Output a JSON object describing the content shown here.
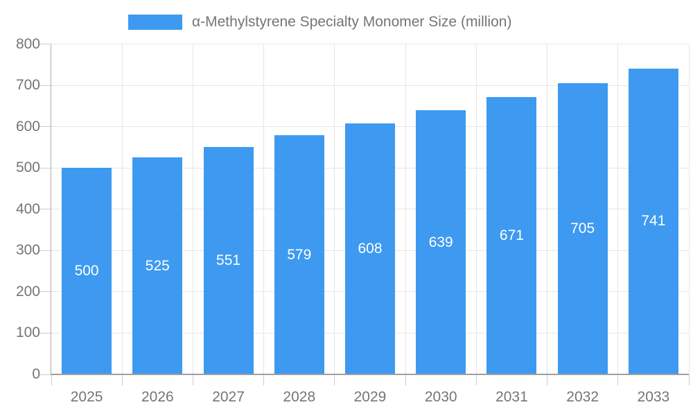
{
  "chart_data": {
    "type": "bar",
    "title": "α-Methylstyrene Specialty Monomer Size (million)",
    "categories": [
      "2025",
      "2026",
      "2027",
      "2028",
      "2029",
      "2030",
      "2031",
      "2032",
      "2033"
    ],
    "values": [
      500,
      525,
      551,
      579,
      608,
      639,
      671,
      705,
      741
    ],
    "xlabel": "",
    "ylabel": "",
    "ylim": [
      0,
      800
    ],
    "yticks": [
      0,
      100,
      200,
      300,
      400,
      500,
      600,
      700,
      800
    ],
    "grid": "both",
    "legend_position": "top",
    "bar_value_labels": "centered-inside-white",
    "colors": {
      "bar": "#3D9AF0",
      "axis_line": "#9E9E9E",
      "axis_line_light": "#ABABAB",
      "gridline": "#E6E6E6",
      "tick": "#CCCCCC",
      "tick_label": "#757575",
      "legend_text": "#757575",
      "bar_label_text": "#FFFFFF",
      "background": "#FFFFFF"
    }
  }
}
